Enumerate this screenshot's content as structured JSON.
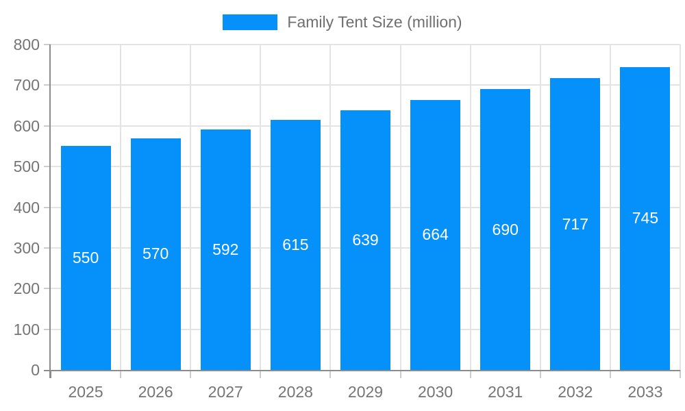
{
  "legend": {
    "label": "Family Tent Size (million)"
  },
  "chart_data": {
    "type": "bar",
    "categories": [
      "2025",
      "2026",
      "2027",
      "2028",
      "2029",
      "2030",
      "2031",
      "2032",
      "2033"
    ],
    "values": [
      550,
      570,
      592,
      615,
      639,
      664,
      690,
      717,
      745
    ],
    "series_name": "Family Tent Size (million)",
    "ylim": [
      0,
      800
    ],
    "yticks": [
      0,
      100,
      200,
      300,
      400,
      500,
      600,
      700,
      800
    ],
    "grid": true,
    "legend_position": "top-center",
    "value_label_position": "inside-center",
    "colors": {
      "bar": "#0691FA",
      "grid": "#E3E3E3",
      "tick": "#CCCCCC",
      "axis": "#8C8C8C",
      "text": "#757575",
      "value_label": "#FFFFFF",
      "background": "#FFFFFF"
    }
  }
}
